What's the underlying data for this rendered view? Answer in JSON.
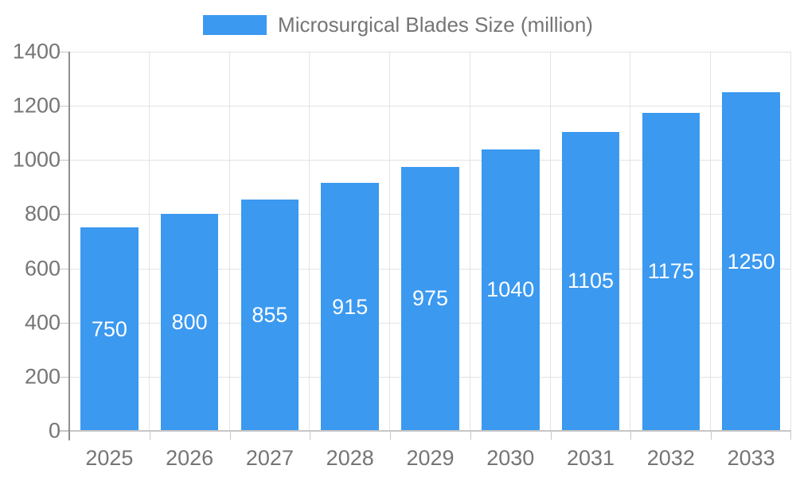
{
  "legend": {
    "swatch_color": "#3B99F0",
    "label": "Microsurgical Blades Size (million)"
  },
  "chart_data": {
    "type": "bar",
    "title": "Microsurgical Blades Size (million)",
    "categories": [
      "2025",
      "2026",
      "2027",
      "2028",
      "2029",
      "2030",
      "2031",
      "2032",
      "2033"
    ],
    "values": [
      750,
      800,
      855,
      915,
      975,
      1040,
      1105,
      1175,
      1250
    ],
    "xlabel": "",
    "ylabel": "",
    "ylim": [
      0,
      1400
    ],
    "yticks": [
      0,
      200,
      400,
      600,
      800,
      1000,
      1200,
      1400
    ],
    "grid": true,
    "legend_position": "top",
    "bar_value_labels": true,
    "bar_width_fraction": 0.72
  },
  "colors": {
    "bar": "#3B99F0",
    "grid": "#E3E3E3",
    "axis_y": "#8F8F8F",
    "axis_x": "#C6C6C6",
    "tick": "#C6C6C6",
    "text": "#757575",
    "bar_label": "#FFFFFF",
    "background": "#FFFFFF"
  }
}
